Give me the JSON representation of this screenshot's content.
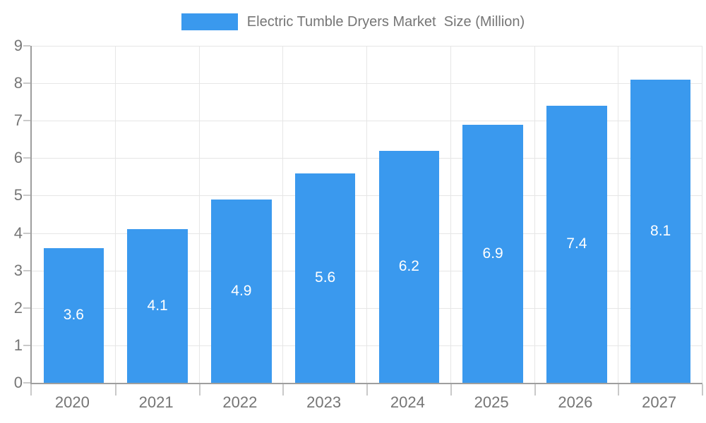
{
  "legend": {
    "label": "Electric Tumble Dryers Market  Size (Million)"
  },
  "chart_data": {
    "type": "bar",
    "title": "Electric Tumble Dryers Market  Size (Million)",
    "categories": [
      "2020",
      "2021",
      "2022",
      "2023",
      "2024",
      "2025",
      "2026",
      "2027"
    ],
    "values": [
      3.6,
      4.1,
      4.9,
      5.6,
      6.2,
      6.9,
      7.4,
      8.1
    ],
    "xlabel": "",
    "ylabel": "",
    "ylim": [
      0,
      9
    ],
    "ytick_step": 1,
    "ytick_labels": [
      "0",
      "1",
      "2",
      "3",
      "4",
      "5",
      "6",
      "7",
      "8",
      "9"
    ],
    "grid": true,
    "legend_position": "top-center",
    "colors": {
      "bar": "#3a99ee",
      "bar_value_text": "#ffffff",
      "axis_text": "#757575",
      "axis_line": "#9e9e9e",
      "gridline": "#e6e6e6",
      "tick": "#c9c9c9"
    }
  }
}
